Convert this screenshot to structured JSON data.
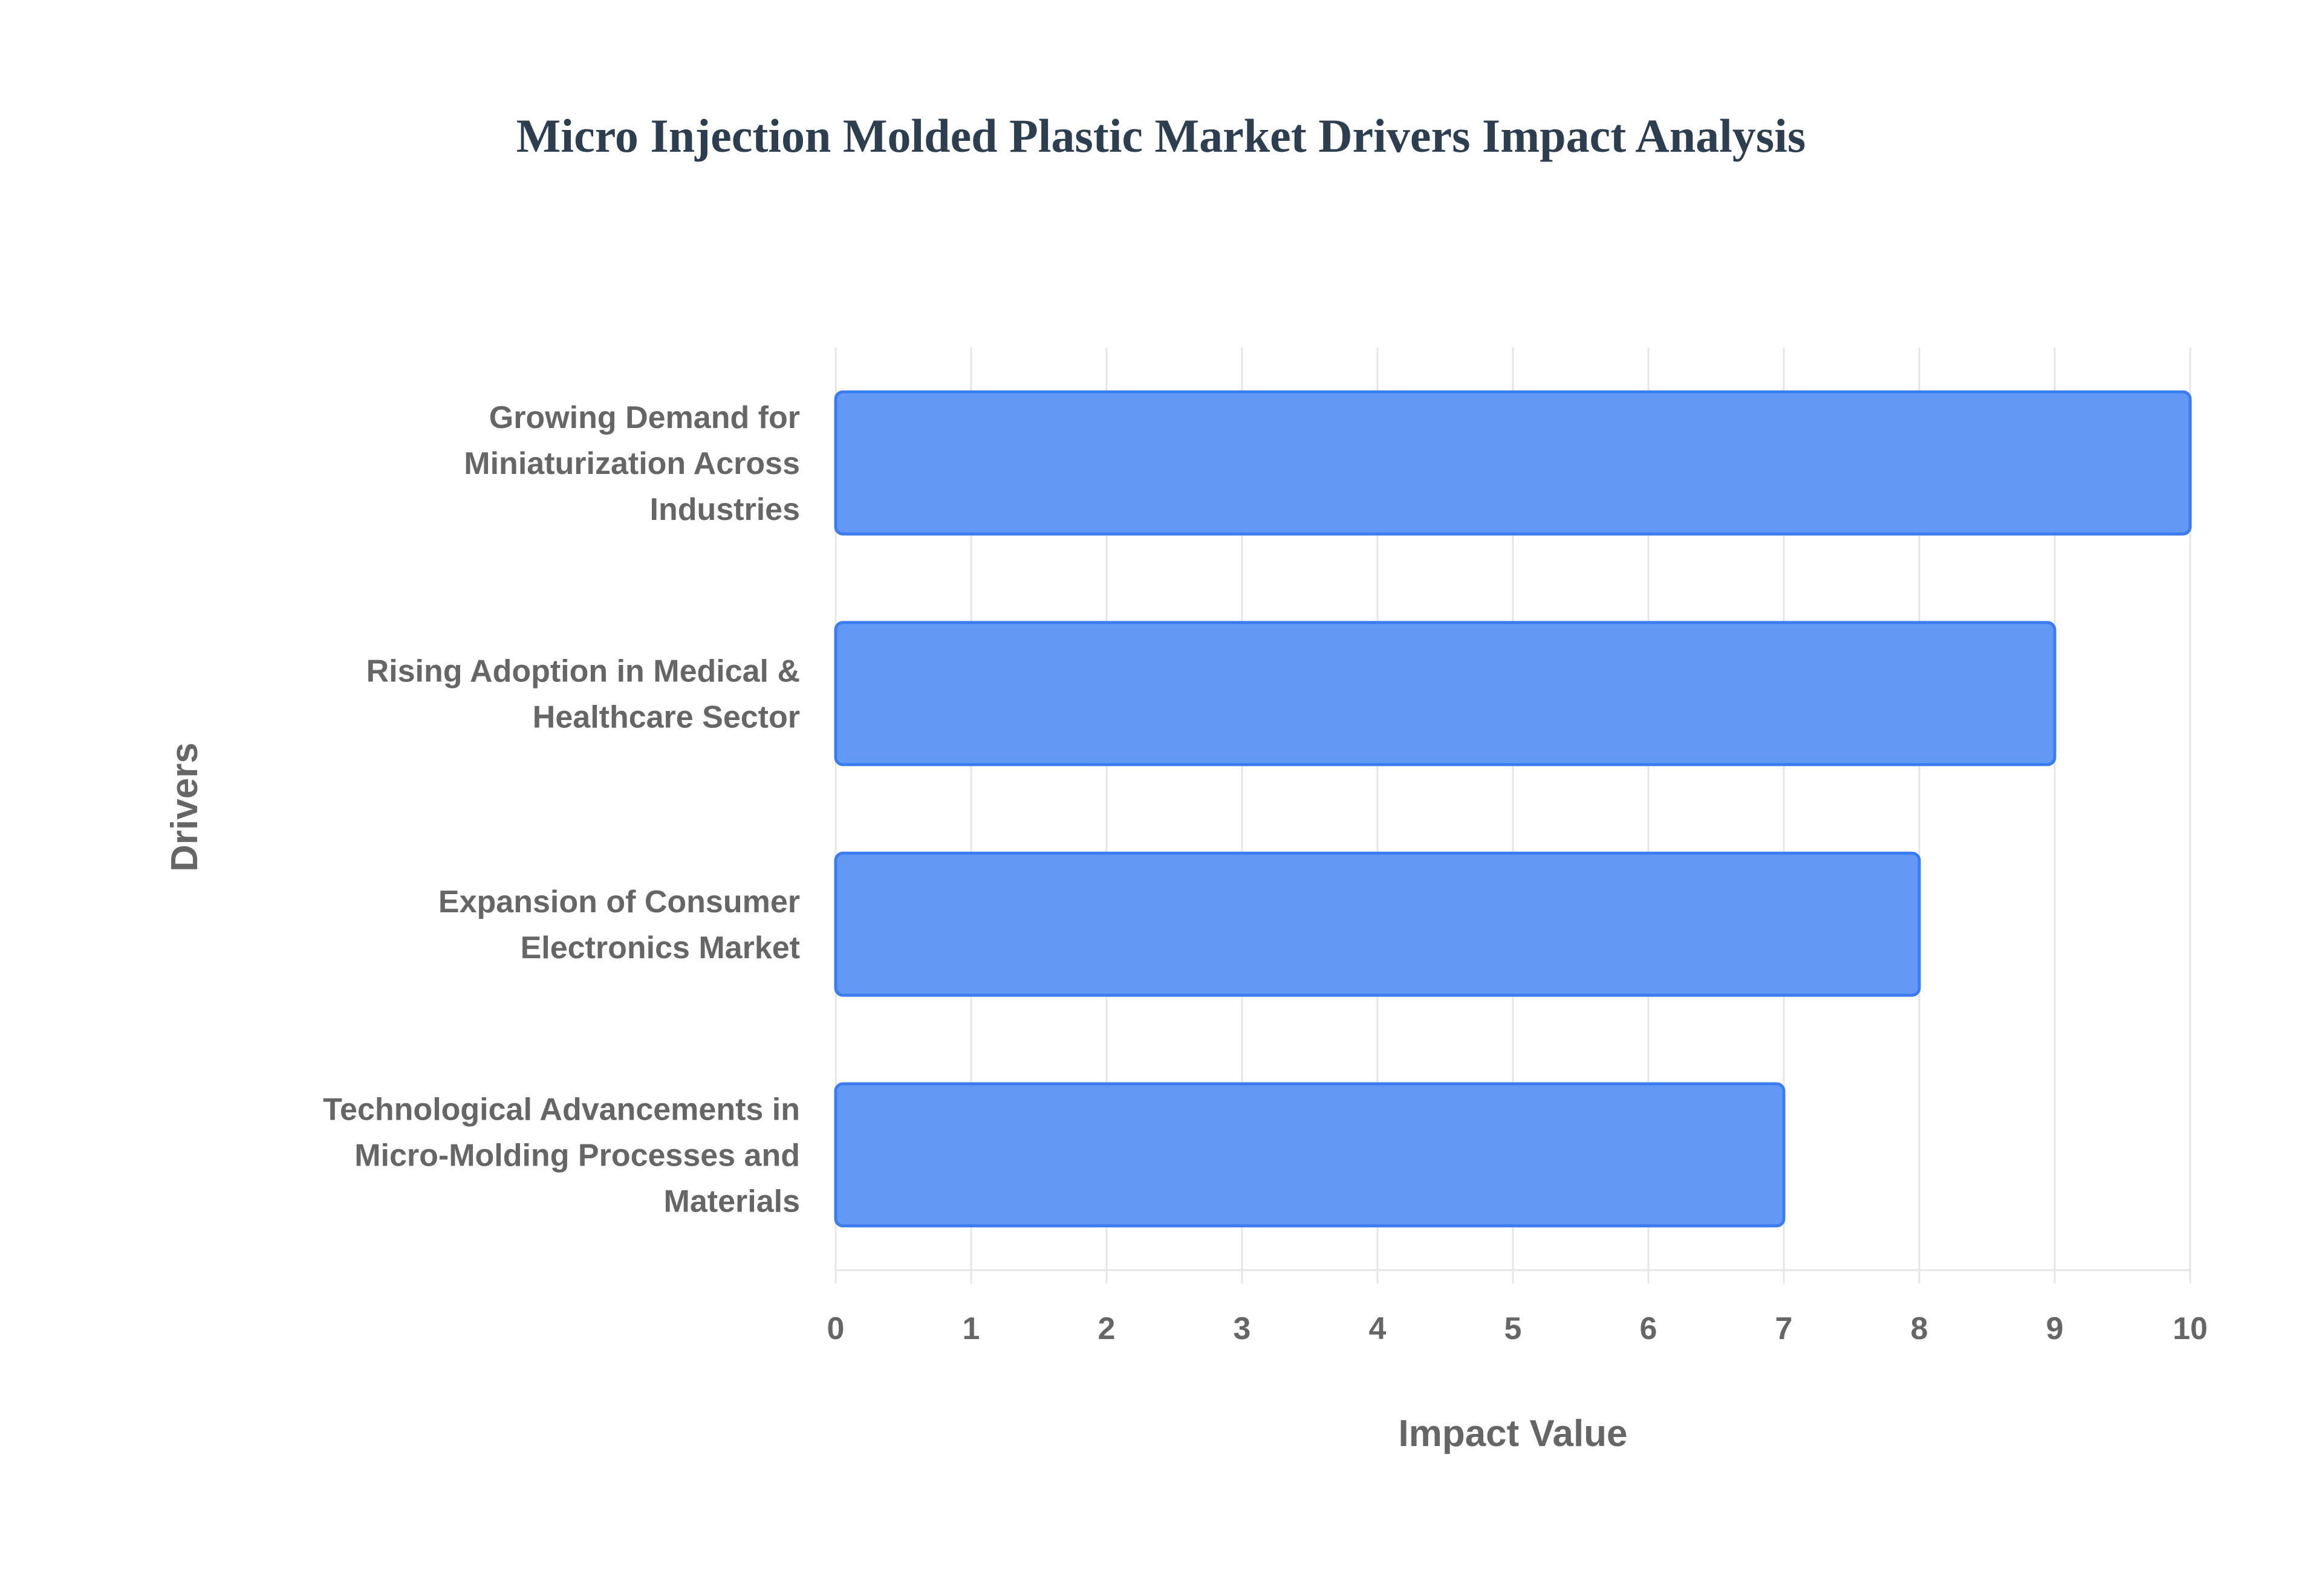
{
  "chart_data": {
    "type": "bar",
    "orientation": "horizontal",
    "title": "Micro Injection Molded Plastic Market Drivers Impact Analysis",
    "xlabel": "Impact Value",
    "ylabel": "Drivers",
    "categories": [
      [
        "Growing Demand for",
        "Miniaturization Across",
        "Industries"
      ],
      [
        "Rising Adoption in Medical &",
        "Healthcare Sector"
      ],
      [
        "Expansion of Consumer",
        "Electronics Market"
      ],
      [
        "Technological Advancements in",
        "Micro-Molding Processes and",
        "Materials"
      ]
    ],
    "values": [
      10,
      9,
      8,
      7
    ],
    "xlim": [
      0,
      10
    ],
    "xticks": [
      "0",
      "1",
      "2",
      "3",
      "4",
      "5",
      "6",
      "7",
      "8",
      "9",
      "10"
    ],
    "grid": true,
    "legend": "none",
    "colors": {
      "bar_fill": "#6199f5",
      "bar_border": "#3b7cf0",
      "grid": "#e5e5e5",
      "text": "#666666",
      "title": "#2c3e50"
    }
  }
}
